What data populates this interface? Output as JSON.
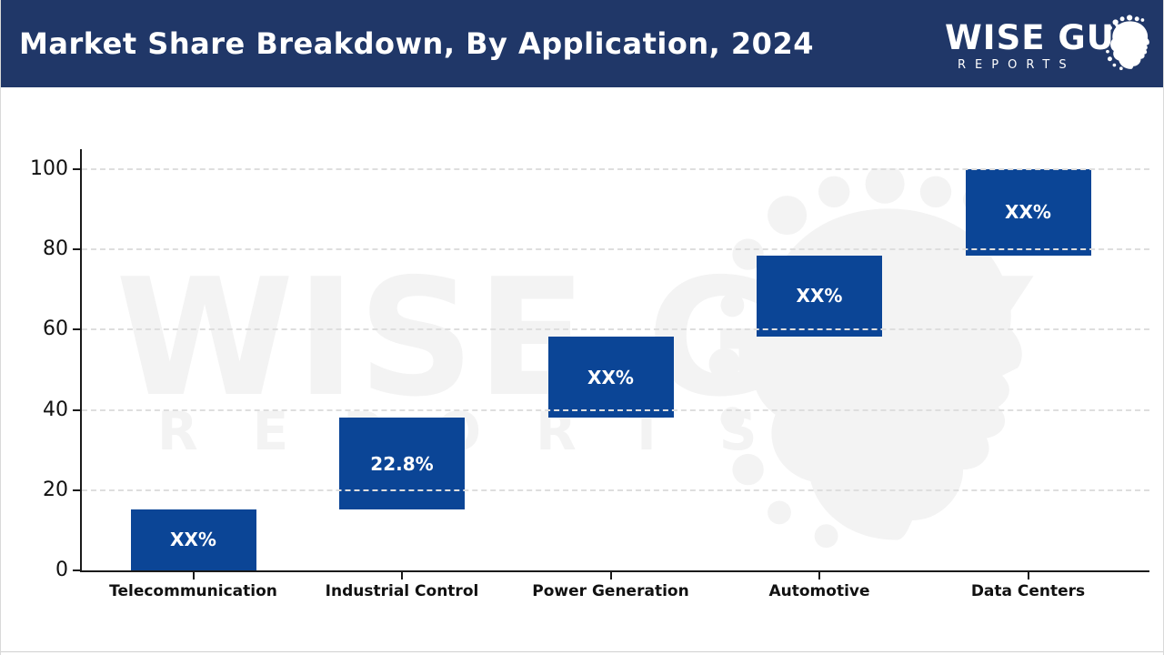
{
  "header": {
    "title": "Market Share Breakdown, By Application, 2024",
    "logo_line1": "WISE GUY",
    "logo_line2": "REPORTS"
  },
  "watermark": {
    "line1": "WISE GUY",
    "line2": "REPORTS"
  },
  "chart_data": {
    "type": "bar",
    "subtype": "floating-waterfall",
    "title": "Market Share Breakdown, By Application, 2024",
    "categories": [
      "Telecommunication",
      "Industrial Control",
      "Power Generation",
      "Automotive",
      "Data Centers"
    ],
    "bars": [
      {
        "category": "Telecommunication",
        "start": 0,
        "end": 15.2,
        "label": "XX%"
      },
      {
        "category": "Industrial Control",
        "start": 15.2,
        "end": 38,
        "label": "22.8%"
      },
      {
        "category": "Power Generation",
        "start": 38,
        "end": 58.3,
        "label": "XX%"
      },
      {
        "category": "Automotive",
        "start": 58.3,
        "end": 78.5,
        "label": "XX%"
      },
      {
        "category": "Data Centers",
        "start": 78.5,
        "end": 100,
        "label": "XX%"
      }
    ],
    "yticks": [
      0,
      20,
      40,
      60,
      80,
      100
    ],
    "ylim": [
      0,
      105
    ],
    "xlabel": "",
    "ylabel": "",
    "grid": "horizontal-dashed",
    "legend": "none",
    "bar_color": "#0b4596",
    "header_color": "#203768",
    "gridline_color": "#dedede",
    "axis_color": "#1a1a1a",
    "watermark_color": "#f3f3f3"
  }
}
